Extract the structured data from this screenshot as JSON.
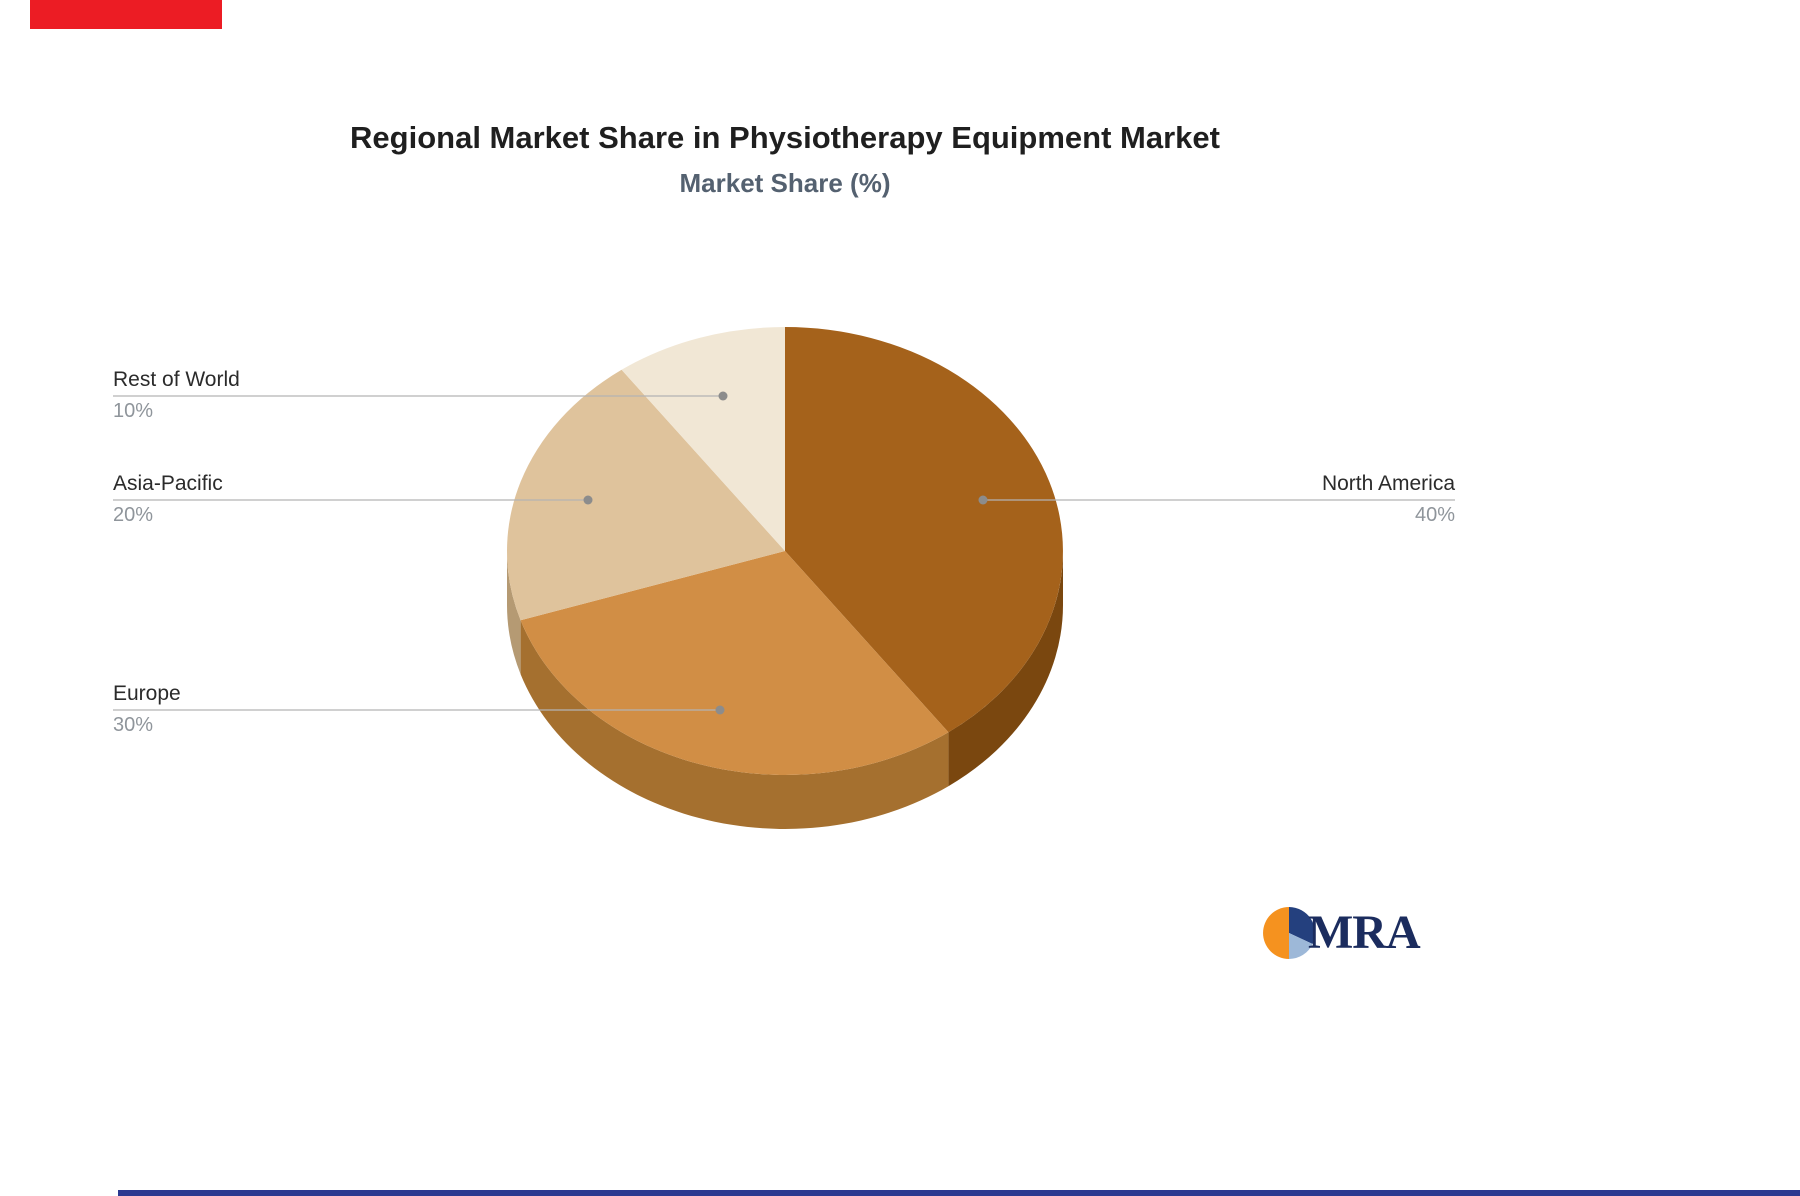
{
  "page": {
    "title": "Regional Market Share in Physiotherapy Equipment Market",
    "subtitle": "Market Share (%)"
  },
  "chart_data": {
    "type": "pie",
    "style": "3d-pie",
    "title": "Regional Market Share in Physiotherapy Equipment Market",
    "subtitle": "Market Share (%)",
    "unit": "%",
    "labels": [
      "North America",
      "Europe",
      "Asia-Pacific",
      "Rest of World"
    ],
    "values": [
      40,
      30,
      20,
      10
    ],
    "value_labels": [
      "40%",
      "30%",
      "20%",
      "10%"
    ],
    "colors": [
      "#a5621b",
      "#d18e45",
      "#dfc39c",
      "#f1e7d5"
    ],
    "side_colors": [
      "#7a470f",
      "#a5702f",
      "#b59a73",
      "#d8cbb5"
    ],
    "start_angle_deg": -90,
    "direction": "clockwise",
    "legend_position": "none",
    "label_style": "leader-lines",
    "background": "#ffffff"
  },
  "decorations": {
    "red_banner_color": "#ec1c24",
    "bottom_bar_color": "#2b3990",
    "leader_line_color": "#b3b3b3",
    "leader_dot_color": "#8c8c8c"
  },
  "logo": {
    "text": "MRA",
    "colors": {
      "navy": "#24407e",
      "light_blue": "#9db8d8",
      "orange": "#f5921f",
      "text_navy": "#1b2c5e"
    }
  }
}
